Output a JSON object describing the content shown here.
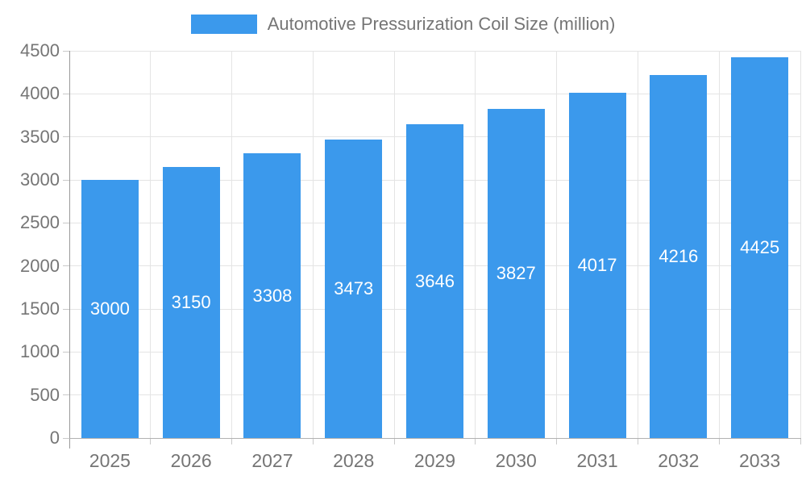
{
  "chart_data": {
    "type": "bar",
    "title": "Automotive Pressurization Coil Size (million)",
    "categories": [
      "2025",
      "2026",
      "2027",
      "2028",
      "2029",
      "2030",
      "2031",
      "2032",
      "2033"
    ],
    "values": [
      3000,
      3150,
      3308,
      3473,
      3646,
      3827,
      4017,
      4216,
      4425
    ],
    "xlabel": "",
    "ylabel": "",
    "ylim": [
      0,
      4500
    ],
    "ytick_step": 500,
    "grid": true,
    "legend_position": "top",
    "colors": {
      "bar": "#3B99EC",
      "grid_line": "#E4E4E4",
      "x_axis_line": "#B2B2B2",
      "y_axis_line": "#9A9A9A",
      "tick_mark": "#C9C9C9",
      "axis_text": "#757575",
      "legend_text": "#757575",
      "value_label": "#FFFFFF",
      "background": "#FFFFFF"
    }
  }
}
